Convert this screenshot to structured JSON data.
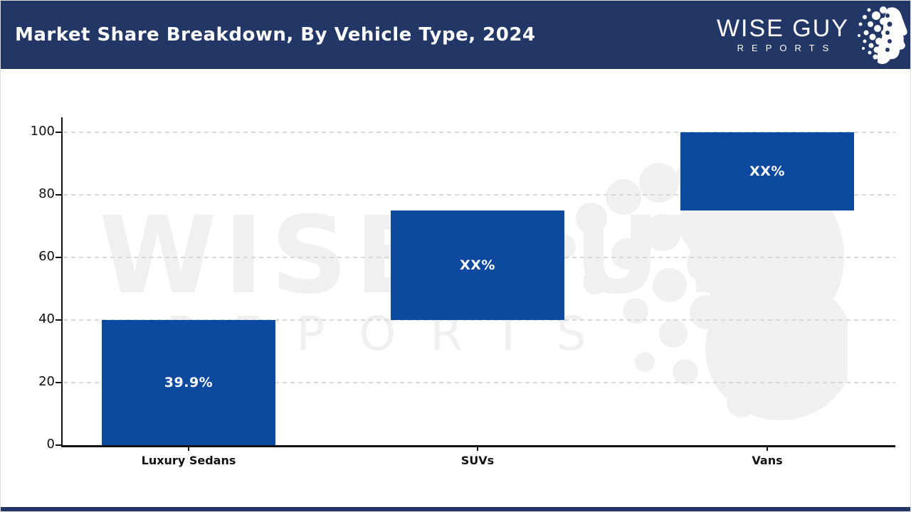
{
  "header": {
    "title": "Market Share Breakdown, By Vehicle Type, 2024",
    "logo": {
      "line1": "WISE GUY",
      "line2": "REPORTS"
    }
  },
  "watermark": {
    "line1": "WISE GUY",
    "line2": "REPORTS"
  },
  "footer": {
    "present": true
  },
  "colors": {
    "navy": "#233766",
    "bar_blue": "#0d4a9f",
    "bar_label": "#ffffff",
    "watermark_gray": "#f0f0f2",
    "grid_gray": "#d8d8d8",
    "axis_black": "#111111"
  },
  "chart_data": {
    "type": "bar",
    "subtype": "waterfall",
    "title": "Market Share Breakdown, By Vehicle Type, 2024",
    "categories": [
      "Luxury Sedans",
      "SUVs",
      "Vans"
    ],
    "segments": [
      {
        "category": "Luxury Sedans",
        "start": 0,
        "end": 39.9,
        "label": "39.9%"
      },
      {
        "category": "SUVs",
        "start": 40,
        "end": 75,
        "label": "XX%"
      },
      {
        "category": "Vans",
        "start": 75,
        "end": 100,
        "label": "XX%"
      }
    ],
    "xlabel": "",
    "ylabel": "",
    "yticks": [
      0,
      20,
      40,
      60,
      80,
      100
    ],
    "ylim": [
      0,
      105
    ],
    "grid": "horizontal-dashed",
    "legend": "none"
  }
}
